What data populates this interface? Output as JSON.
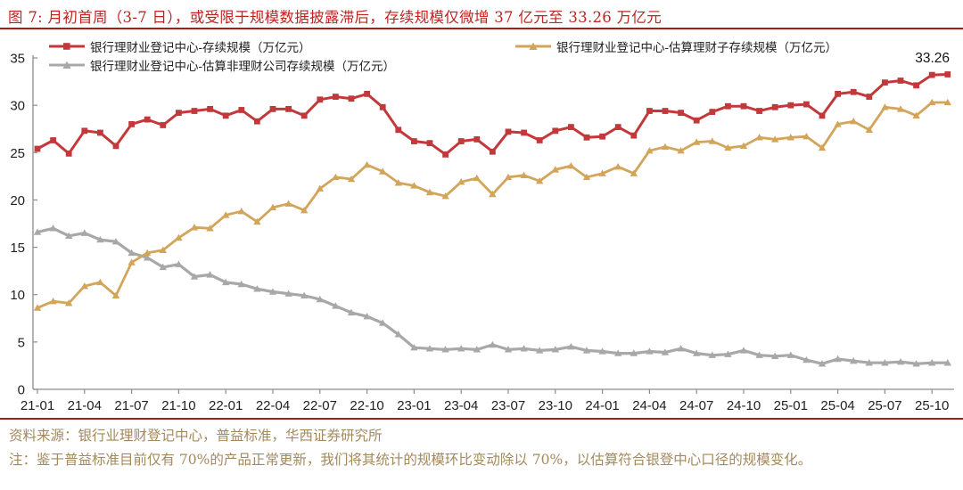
{
  "title": "图 7:  月初首周（3-7 日），或受限于规模数据披露滞后，存续规模仅微增 37 亿元至 33.26 万亿元",
  "footer": {
    "source": "资料来源：银行业理财登记中心，普益标准，华西证券研究所",
    "note": "注：鉴于普益标准目前仅有 70%的产品正常更新，我们将其统计的规模环比变动除以 70%，以估算符合银登中心口径的规模变化。"
  },
  "colors": {
    "title_red": "#C02323",
    "rule_red": "#A81B1B",
    "footer_tan": "#A3895C",
    "axis_gray": "#8C8C8C",
    "series_red": "#C3393B",
    "series_gold": "#D2A55A",
    "series_gray": "#A8A8A8"
  },
  "chart_data": {
    "type": "line",
    "title": "",
    "xlabel": "",
    "ylabel": "",
    "ylim": [
      0,
      35
    ],
    "y_ticks": [
      0,
      5,
      10,
      15,
      20,
      25,
      30,
      35
    ],
    "grid": false,
    "legend_position": "top",
    "x": [
      "21-01",
      "21-02",
      "21-03",
      "21-04",
      "21-05",
      "21-06",
      "21-07",
      "21-08",
      "21-09",
      "21-10",
      "21-11",
      "21-12",
      "22-01",
      "22-02",
      "22-03",
      "22-04",
      "22-05",
      "22-06",
      "22-07",
      "22-08",
      "22-09",
      "22-10",
      "22-11",
      "22-12",
      "23-01",
      "23-02",
      "23-03",
      "23-04",
      "23-05",
      "23-06",
      "23-07",
      "23-08",
      "23-09",
      "23-10",
      "23-11",
      "23-12",
      "24-01",
      "24-02",
      "24-03",
      "24-04",
      "24-05",
      "24-06",
      "24-07",
      "24-08",
      "24-09",
      "24-10",
      "24-11",
      "24-12",
      "25-01",
      "25-02",
      "25-03",
      "25-04",
      "25-05",
      "25-06",
      "25-07",
      "25-08",
      "25-09",
      "25-10",
      "25-11"
    ],
    "x_axis_tick_labels": [
      "21-01",
      "21-04",
      "21-07",
      "21-10",
      "22-01",
      "22-04",
      "22-07",
      "22-10",
      "23-01",
      "23-04",
      "23-07",
      "23-10",
      "24-01",
      "24-04",
      "24-07",
      "24-10",
      "25-01",
      "25-04",
      "25-07",
      "25-10"
    ],
    "series": [
      {
        "name": "银行理财业登记中心-存续规模（万亿元）",
        "color": "#C3393B",
        "marker": "square",
        "values": [
          25.4,
          26.3,
          24.9,
          27.3,
          27.1,
          25.7,
          28.0,
          28.5,
          27.9,
          29.2,
          29.4,
          29.6,
          28.9,
          29.5,
          28.3,
          29.6,
          29.6,
          28.9,
          30.6,
          30.9,
          30.7,
          31.2,
          29.8,
          27.4,
          26.2,
          26.0,
          24.8,
          26.2,
          26.4,
          25.1,
          27.2,
          27.1,
          26.3,
          27.3,
          27.7,
          26.6,
          26.7,
          27.7,
          26.8,
          29.4,
          29.4,
          29.2,
          28.4,
          29.3,
          29.9,
          29.9,
          29.4,
          29.8,
          30.0,
          30.1,
          28.9,
          31.2,
          31.4,
          30.9,
          32.4,
          32.6,
          32.1,
          33.2,
          33.26
        ]
      },
      {
        "name": "银行理财业登记中心-估算理财子存续规模（万亿元）",
        "color": "#D2A55A",
        "marker": "triangle",
        "values": [
          8.6,
          9.3,
          9.1,
          10.9,
          11.3,
          9.9,
          13.4,
          14.4,
          14.7,
          16.0,
          17.1,
          17.0,
          18.4,
          18.8,
          17.7,
          19.2,
          19.6,
          18.9,
          21.2,
          22.4,
          22.2,
          23.7,
          23.0,
          21.8,
          21.5,
          20.8,
          20.4,
          21.9,
          22.3,
          20.6,
          22.4,
          22.6,
          22.0,
          23.2,
          23.6,
          22.4,
          22.8,
          23.5,
          22.8,
          25.2,
          25.6,
          25.2,
          26.1,
          26.2,
          25.5,
          25.7,
          26.6,
          26.4,
          26.6,
          26.7,
          25.5,
          28.0,
          28.3,
          27.4,
          29.8,
          29.6,
          28.9,
          30.3,
          30.3
        ]
      },
      {
        "name": "银行理财业登记中心-估算非理财公司存续规模（万亿元）",
        "color": "#A8A8A8",
        "marker": "triangle",
        "values": [
          16.6,
          17.0,
          16.2,
          16.5,
          15.8,
          15.6,
          14.4,
          13.9,
          12.9,
          13.2,
          11.9,
          12.1,
          11.3,
          11.1,
          10.6,
          10.3,
          10.1,
          9.9,
          9.5,
          8.8,
          8.1,
          7.7,
          7.0,
          5.8,
          4.4,
          4.3,
          4.2,
          4.3,
          4.2,
          4.7,
          4.2,
          4.3,
          4.1,
          4.2,
          4.5,
          4.1,
          4.0,
          3.8,
          3.8,
          4.0,
          3.9,
          4.3,
          3.8,
          3.6,
          3.7,
          4.1,
          3.6,
          3.5,
          3.6,
          3.1,
          2.7,
          3.2,
          3.0,
          2.8,
          2.8,
          2.9,
          2.7,
          2.8,
          2.8
        ]
      }
    ],
    "annotation": {
      "text": "33.26",
      "x": "25-11",
      "y": 33.26
    }
  }
}
